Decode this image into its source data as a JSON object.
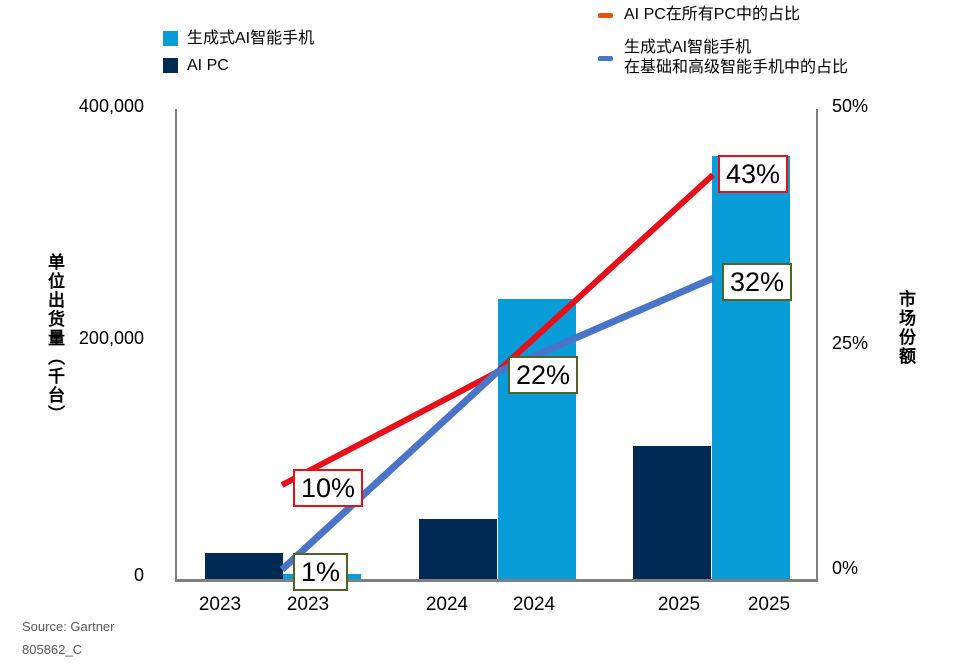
{
  "footer": {
    "source": "Source: Gartner",
    "doc_id": "805862_C"
  },
  "axes": {
    "left": {
      "title": "单位出货量（千台）",
      "ticks": [
        "400,000",
        "200,000",
        "0"
      ]
    },
    "right": {
      "title": "市场份额",
      "ticks": [
        "50%",
        "25%",
        "0%"
      ]
    }
  },
  "colors": {
    "ai_pc_bar": "#002A54",
    "genai_phone_bar": "#089CD8",
    "ai_pc_line": "#E60F1A",
    "ai_pc_line_legend": "#E8500F",
    "genai_phone_line": "#4A74C8",
    "axis_gray": "#7F7F7F",
    "label_border_red": "#E60F1A",
    "label_border_olive": "#4F6228"
  },
  "chart_data": {
    "type": "combo bar + line, dual axis",
    "title": "",
    "categories": [
      "2023",
      "2024",
      "2025"
    ],
    "x_tick_labels": [
      "2023",
      "2023",
      "2024",
      "2024",
      "2025",
      "2025"
    ],
    "left_axis": {
      "label": "单位出货量（千台）",
      "range": [
        0,
        400000
      ],
      "tick_values": [
        0,
        200000,
        400000
      ]
    },
    "right_axis": {
      "label": "市场份额",
      "range_pct": [
        0,
        50
      ],
      "tick_values_pct": [
        0,
        25,
        50
      ]
    },
    "grid": false,
    "legend_position": "top",
    "bar_series": [
      {
        "name": "AI PC",
        "color": "#002A54",
        "values": [
          22000,
          51000,
          113000
        ]
      },
      {
        "name": "生成式AI智能手机",
        "color": "#089CD8",
        "values": [
          4000,
          238000,
          360000
        ]
      }
    ],
    "line_series": [
      {
        "name": "AI PC在所有PC中的占比",
        "color": "#E60F1A",
        "legend_color": "#E8500F",
        "label_border": "#E60F1A",
        "stroke_width": 6,
        "values_pct": [
          10,
          22,
          43
        ],
        "point_labels": [
          "10%",
          null,
          "43%"
        ]
      },
      {
        "name": "生成式AI智能手机\n在基础和高级智能手机中的占比",
        "color": "#4A74C8",
        "legend_color": "#4A74C8",
        "label_border": "#4F6228",
        "stroke_width": 7,
        "values_pct": [
          1,
          22,
          32
        ],
        "point_labels": [
          "1%",
          "22%",
          "32%"
        ]
      }
    ],
    "source": "Source: Gartner",
    "document_id": "805862_C"
  }
}
